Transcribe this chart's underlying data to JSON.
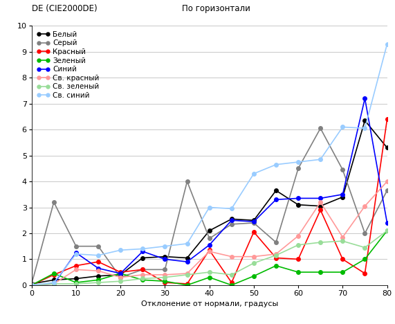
{
  "title_left": "DE (CIE2000DE)",
  "title_right": "По горизонтали",
  "xlabel": "Отклонение от нормали, градусы",
  "xlim": [
    0,
    80
  ],
  "ylim": [
    0,
    10
  ],
  "xticks": [
    0,
    10,
    20,
    30,
    40,
    50,
    60,
    70,
    80
  ],
  "yticks": [
    0,
    1,
    2,
    3,
    4,
    5,
    6,
    7,
    8,
    9,
    10
  ],
  "series": [
    {
      "label": "Белый",
      "color": "#000000",
      "x": [
        0,
        5,
        10,
        15,
        20,
        25,
        30,
        35,
        40,
        45,
        50,
        55,
        60,
        65,
        70,
        75,
        80
      ],
      "y": [
        0.05,
        0.2,
        0.25,
        0.35,
        0.4,
        1.05,
        1.1,
        1.05,
        2.1,
        2.55,
        2.5,
        3.65,
        3.1,
        3.05,
        3.4,
        6.35,
        5.3
      ]
    },
    {
      "label": "Серый",
      "color": "#808080",
      "x": [
        0,
        5,
        10,
        15,
        20,
        25,
        30,
        35,
        40,
        45,
        50,
        55,
        60,
        65,
        70,
        75,
        80
      ],
      "y": [
        0.05,
        3.2,
        1.5,
        1.5,
        0.3,
        0.6,
        0.6,
        4.0,
        1.8,
        2.35,
        2.4,
        1.65,
        4.5,
        6.05,
        4.45,
        2.0,
        3.65
      ]
    },
    {
      "label": "Красный",
      "color": "#ff0000",
      "x": [
        0,
        5,
        10,
        15,
        20,
        25,
        30,
        35,
        40,
        45,
        50,
        55,
        60,
        65,
        70,
        75,
        80
      ],
      "y": [
        0.0,
        0.4,
        0.75,
        0.9,
        0.5,
        0.6,
        0.1,
        0.05,
        1.35,
        0.1,
        2.05,
        1.05,
        1.0,
        2.9,
        1.0,
        0.45,
        6.4
      ]
    },
    {
      "label": "Зеленый",
      "color": "#00bb00",
      "x": [
        0,
        5,
        10,
        15,
        20,
        25,
        30,
        35,
        40,
        45,
        50,
        55,
        60,
        65,
        70,
        75,
        80
      ],
      "y": [
        0.0,
        0.45,
        0.1,
        0.2,
        0.45,
        0.2,
        0.15,
        0.0,
        0.3,
        0.0,
        0.35,
        0.75,
        0.5,
        0.5,
        0.5,
        1.0,
        2.1
      ]
    },
    {
      "label": "Синий",
      "color": "#0000ff",
      "x": [
        0,
        5,
        10,
        15,
        20,
        25,
        30,
        35,
        40,
        45,
        50,
        55,
        60,
        65,
        70,
        75,
        80
      ],
      "y": [
        0.0,
        0.05,
        1.25,
        0.65,
        0.45,
        1.3,
        1.0,
        0.9,
        1.55,
        2.5,
        2.45,
        3.3,
        3.35,
        3.35,
        3.5,
        7.2,
        2.4
      ]
    },
    {
      "label": "Св. красный",
      "color": "#ff9999",
      "x": [
        0,
        5,
        10,
        15,
        20,
        25,
        30,
        35,
        40,
        45,
        50,
        55,
        60,
        65,
        70,
        75,
        80
      ],
      "y": [
        0.0,
        0.05,
        0.6,
        0.55,
        0.3,
        0.4,
        0.4,
        0.45,
        1.3,
        1.1,
        1.1,
        1.2,
        1.9,
        3.2,
        1.85,
        3.05,
        4.0
      ]
    },
    {
      "label": "Св. зеленый",
      "color": "#99dd99",
      "x": [
        0,
        5,
        10,
        15,
        20,
        25,
        30,
        35,
        40,
        45,
        50,
        55,
        60,
        65,
        70,
        75,
        80
      ],
      "y": [
        0.0,
        0.05,
        0.05,
        0.1,
        0.15,
        0.25,
        0.3,
        0.4,
        0.5,
        0.4,
        0.85,
        1.15,
        1.55,
        1.65,
        1.7,
        1.45,
        2.1
      ]
    },
    {
      "label": "Св. синий",
      "color": "#99ccff",
      "x": [
        0,
        5,
        10,
        15,
        20,
        25,
        30,
        35,
        40,
        45,
        50,
        55,
        60,
        65,
        70,
        75,
        80
      ],
      "y": [
        0.0,
        0.1,
        1.2,
        1.15,
        1.35,
        1.4,
        1.5,
        1.6,
        3.0,
        2.95,
        4.3,
        4.65,
        4.75,
        4.85,
        6.1,
        6.05,
        9.3
      ]
    }
  ],
  "bg_color": "#ffffff",
  "grid_color": "#c8c8c8",
  "fontsize_title": 8.5,
  "fontsize_axis": 8,
  "fontsize_legend": 7.5,
  "fontsize_ticks": 8,
  "marker": "o",
  "markersize": 4,
  "linewidth": 1.2
}
